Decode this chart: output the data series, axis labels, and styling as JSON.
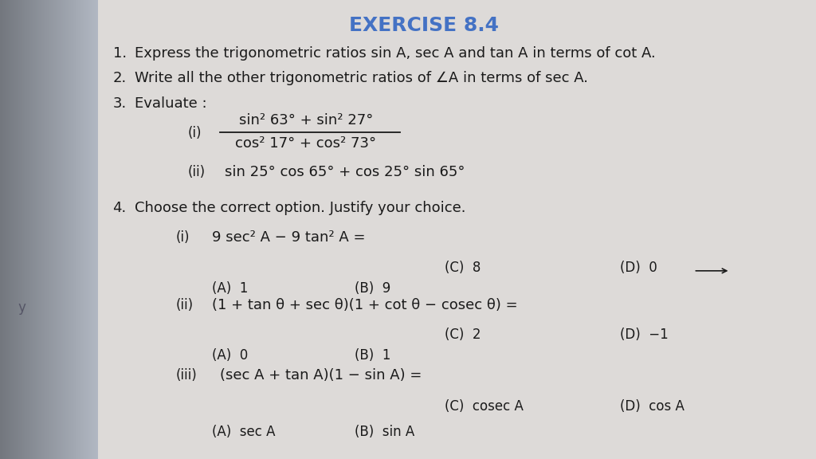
{
  "title": "EXERCISE 8.4",
  "title_color": "#4472C4",
  "bg_color_left": "#b0b8c8",
  "bg_color_right": "#dcdcdc",
  "text_color": "#1a1a1a",
  "font_size_title": 18,
  "font_size_body": 13,
  "font_size_small": 12,
  "line1": "Express the trigonometric ratios sin A, sec A and tan A in terms of cot A.",
  "line2": "Write all the other trigonometric ratios of ∠A in terms of sec A.",
  "line3": "Evaluate :",
  "frac_num": "sin² 63° + sin² 27°",
  "frac_den": "cos² 17° + cos² 73°",
  "line_ii": "sin 25° cos 65° + cos 25° sin 65°",
  "line4": "Choose the correct option. Justify your choice.",
  "q4i": "9 sec² A − 9 tan² A =",
  "q4i_A": "(A)  1",
  "q4i_B": "(B)  9",
  "q4i_C": "(C)  8",
  "q4i_D": "(D)  0",
  "q4ii": "(1 + tan θ + sec θ)(1 + cot θ − cosec θ) =",
  "q4ii_A": "(A)  0",
  "q4ii_B": "(B)  1",
  "q4ii_C": "(C)  2",
  "q4ii_D": "(D)  −1",
  "q4iii": "(sec A + tan A)(1 − sin A) =",
  "q4iii_A": "(A)  sec A",
  "q4iii_B": "(B)  sin A",
  "q4iii_C": "(C)  cosec A",
  "q4iii_D": "(D)  cos A"
}
